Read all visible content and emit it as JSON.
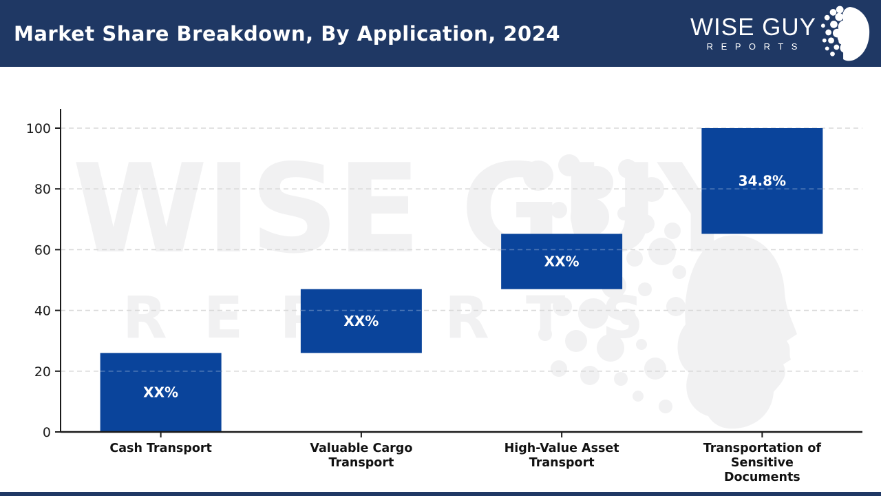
{
  "header": {
    "title": "Market Share Breakdown, By Application, 2024",
    "logo": {
      "wordmark": "WISE GUY",
      "subtext": "R E P O R T S",
      "face_icon": "dotted-head-profile"
    }
  },
  "watermark": {
    "wordmark": "WISE GUY",
    "subtext": "R E P O R T S",
    "face_icon": "dotted-head-profile"
  },
  "colors": {
    "header_navy": "#1f3864",
    "bar_blue": "#0a449b",
    "gridline_gray": "#d9d9d9",
    "axis_black": "#1a1a1a",
    "watermark_gray": "#f1f1f2",
    "bar_label_white": "#ffffff"
  },
  "chart_data": {
    "type": "bar",
    "subtype": "waterfall",
    "title": "Market Share Breakdown, By Application, 2024",
    "xlabel": "",
    "ylabel": "",
    "ylim": [
      0,
      106
    ],
    "yticks": [
      0,
      20,
      40,
      60,
      80,
      100
    ],
    "grid": "dashed horizontal gridlines on",
    "legend": "none",
    "categories": [
      "Cash Transport",
      "Valuable Cargo Transport",
      "High-Value Asset Transport",
      "Transportation of Sensitive Documents"
    ],
    "segments": [
      {
        "category": "Cash Transport",
        "category_lines": [
          "Cash Transport"
        ],
        "start": 0,
        "end": 26,
        "value": 26,
        "label": "XX%"
      },
      {
        "category": "Valuable Cargo Transport",
        "category_lines": [
          "Valuable Cargo",
          "Transport"
        ],
        "start": 26,
        "end": 47,
        "value": 21,
        "label": "XX%"
      },
      {
        "category": "High-Value Asset Transport",
        "category_lines": [
          "High-Value Asset",
          "Transport"
        ],
        "start": 47,
        "end": 65.2,
        "value": 18.2,
        "label": "XX%"
      },
      {
        "category": "Transportation of Sensitive Documents",
        "category_lines": [
          "Transportation of",
          "Sensitive",
          "Documents"
        ],
        "start": 65.2,
        "end": 100,
        "value": 34.8,
        "label": "34.8%"
      }
    ]
  }
}
